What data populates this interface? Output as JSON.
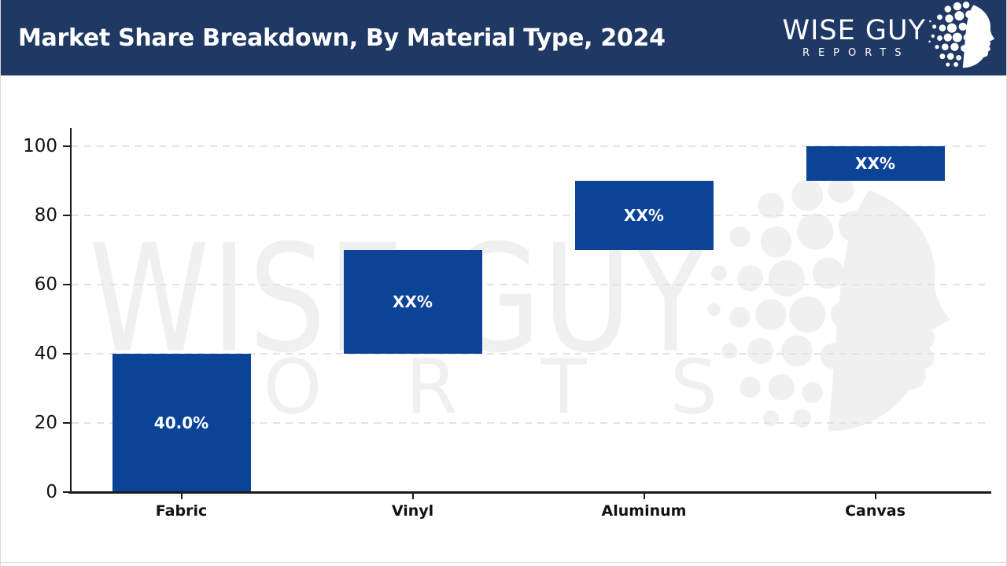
{
  "header": {
    "title": "Market Share Breakdown, By Material Type, 2024",
    "logo": {
      "line1": "WISE GUY",
      "line2": "REPORTS",
      "head_icon": "dotted-head-profile-icon"
    }
  },
  "watermark": {
    "line1": "WISE GUY",
    "line2": "P O R T S",
    "head_icon": "dotted-head-profile-icon"
  },
  "chart_data": {
    "type": "bar",
    "subtype": "waterfall",
    "title": "Market Share Breakdown, By Material Type, 2024",
    "categories": [
      "Fabric",
      "Vinyl",
      "Aluminum",
      "Canvas"
    ],
    "segments": [
      {
        "category": "Fabric",
        "start": 0,
        "end": 40,
        "value_label": "40.0%"
      },
      {
        "category": "Vinyl",
        "start": 40,
        "end": 70,
        "value_label": "XX%"
      },
      {
        "category": "Aluminum",
        "start": 70,
        "end": 90,
        "value_label": "XX%"
      },
      {
        "category": "Canvas",
        "start": 90,
        "end": 100,
        "value_label": "XX%"
      }
    ],
    "xlabel": "",
    "ylabel": "",
    "yticks": [
      0,
      20,
      40,
      60,
      80,
      100
    ],
    "ylim": [
      0,
      105
    ],
    "grid": "horizontal-dashed",
    "legend": "none"
  },
  "colors": {
    "header_bg": "#1F3864",
    "bar": "#0B4397",
    "bar_label": "#ffffff",
    "grid": "#e3e3e3",
    "axis": "#1a1a1a",
    "watermark": "#f0f0f0",
    "page_border": "#d9d9d9"
  }
}
